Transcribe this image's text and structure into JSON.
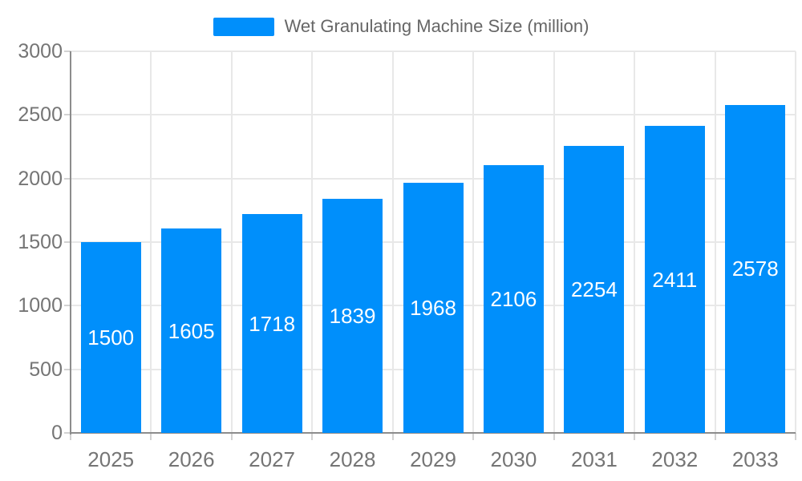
{
  "chart_data": {
    "type": "bar",
    "title": "Wet Granulating Machine Size (million)",
    "categories": [
      "2025",
      "2026",
      "2027",
      "2028",
      "2029",
      "2030",
      "2031",
      "2032",
      "2033"
    ],
    "series": [
      {
        "name": "Wet Granulating Machine Size (million)",
        "values": [
          1500,
          1605,
          1718,
          1839,
          1968,
          2106,
          2254,
          2411,
          2578
        ]
      }
    ],
    "xlabel": "",
    "ylabel": "",
    "ylim": [
      0,
      3000
    ],
    "ytick_step": 500,
    "grid": true,
    "legend_position": "top",
    "data_labels": "inside-center"
  },
  "colors": {
    "background": "#ffffff",
    "bar": "#008FFB",
    "data_label": "#ffffff",
    "axis_label": "#757575",
    "legend_text": "#666666",
    "gridline": "#e8e8e8",
    "tick": "#d2d2d2",
    "axis_line": "#8c8c8c"
  }
}
